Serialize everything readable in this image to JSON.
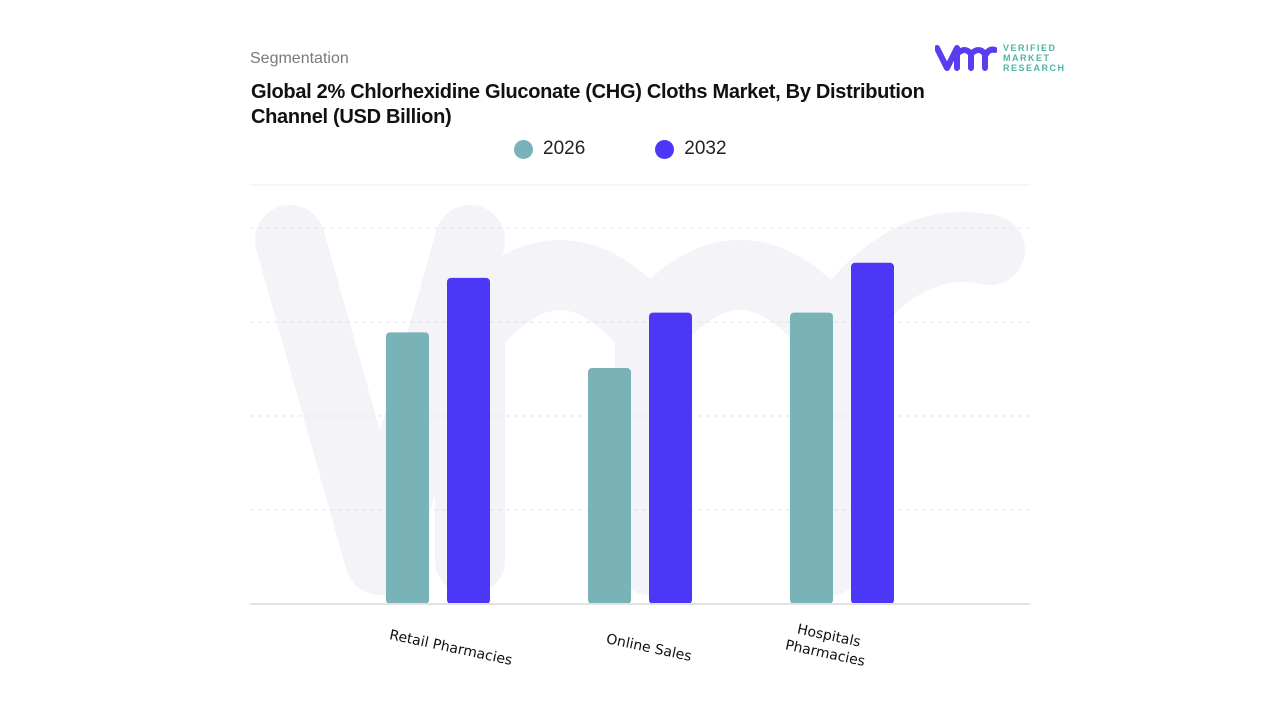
{
  "header": {
    "segment_label": "Segmentation",
    "logo_text": [
      "VERIFIED",
      "MARKET",
      "RESEARCH"
    ]
  },
  "chart_data": {
    "type": "bar",
    "title": "Global 2% Chlorhexidine Gluconate (CHG) Cloths Market, By Distribution Channel (USD Billion)",
    "categories": [
      "Retail Pharmacies",
      "Online Sales",
      "Hospitals Pharmacies"
    ],
    "series": [
      {
        "name": "2026",
        "color": "#79b3b7",
        "values": [
          2.89,
          2.51,
          3.1
        ]
      },
      {
        "name": "2032",
        "color": "#4b37f5",
        "values": [
          3.47,
          3.1,
          3.63
        ]
      }
    ],
    "xlabel": "",
    "ylabel": "",
    "ylim": [
      0,
      4
    ],
    "grid": true,
    "legend_position": "top",
    "y_tick_labels_shown": false
  }
}
